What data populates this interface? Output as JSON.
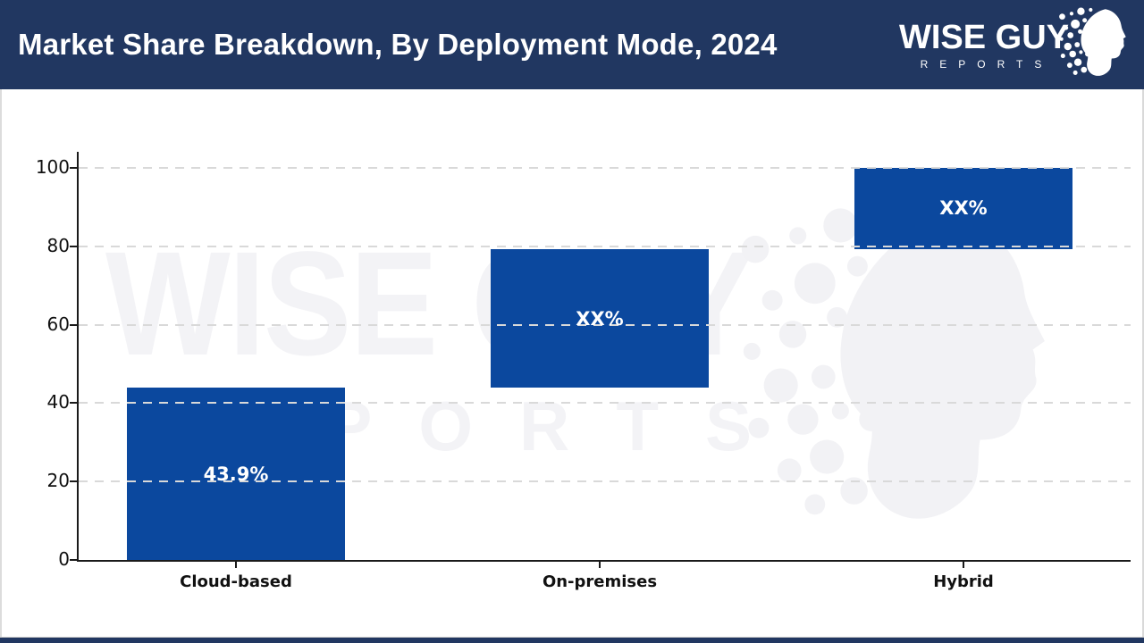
{
  "header": {
    "title": "Market Share Breakdown, By Deployment Mode, 2024",
    "logo": {
      "primary": "WISE GUY",
      "secondary": "REPORTS"
    }
  },
  "watermark": {
    "primary": "WISE GUY",
    "secondary": "REPORTS"
  },
  "chart_data": {
    "type": "bar",
    "subtype": "floating-segment-breakdown",
    "title": "Market Share Breakdown, By Deployment Mode, 2024",
    "categories": [
      "Cloud-based",
      "On-premises",
      "Hybrid"
    ],
    "bars": [
      {
        "category": "Cloud-based",
        "start": 0,
        "end": 43.9,
        "label": "43.9%"
      },
      {
        "category": "On-premises",
        "start": 43.9,
        "end": 79.3,
        "label": "XX%"
      },
      {
        "category": "Hybrid",
        "start": 79.3,
        "end": 100,
        "label": "XX%"
      }
    ],
    "yticks": [
      0,
      20,
      40,
      60,
      80,
      100
    ],
    "ylim": [
      0,
      100
    ],
    "xlabel": "",
    "ylabel": "",
    "grid": "horizontal-dashed",
    "legend": "none"
  },
  "colors": {
    "header_bg": "#213761",
    "footer_bg": "#213761",
    "bar": "#0b489e",
    "bar_label": "#ffffff",
    "gridline": "#d9d9d9",
    "axis": "#1a1a1a",
    "watermark": "#f3f3f6"
  }
}
